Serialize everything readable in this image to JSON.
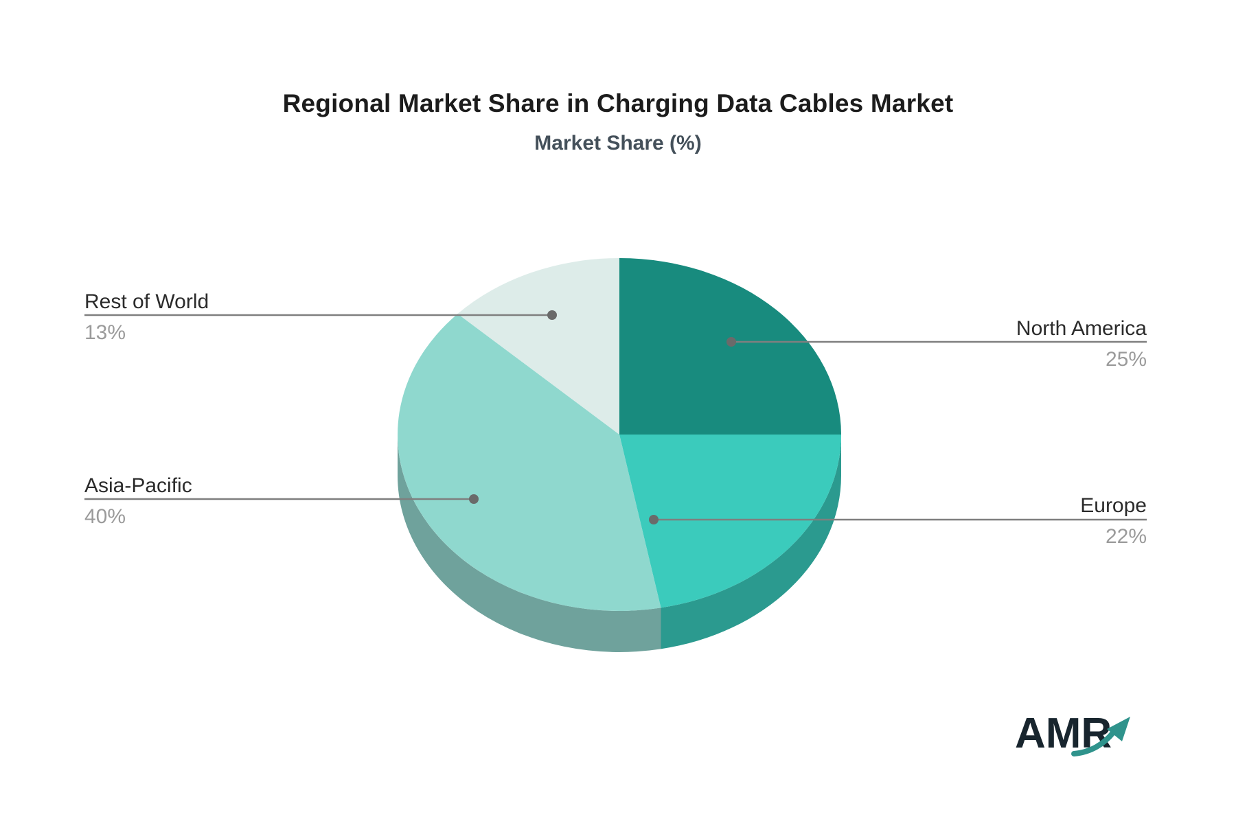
{
  "chart_data": {
    "type": "pie",
    "style": "3d-pie",
    "title": "Regional Market Share in Charging Data Cables Market",
    "subtitle": "Market Share (%)",
    "unit": "%",
    "direction": "clockwise",
    "start_angle_deg": 0,
    "categories": [
      "North America",
      "Europe",
      "Asia-Pacific",
      "Rest of World"
    ],
    "values": [
      25,
      22,
      40,
      13
    ],
    "value_labels": [
      "25%",
      "22%",
      "40%",
      "13%"
    ],
    "colors": [
      "#188B7E",
      "#3BCBBC",
      "#8FD8CE",
      "#DDECE9"
    ],
    "depth_colors": [
      "#16796F",
      "#2B9A8F",
      "#6FA29C",
      "#C5DCD8"
    ],
    "title_color": "#1C1C1C",
    "subtitle_color": "#44505A",
    "label_color": "#2B2B2B",
    "value_label_color": "#9B9B9B",
    "leader_line_color": "#7F7F7F",
    "leader_dot_color": "#6A6A6A",
    "background_color": "#FFFFFF",
    "legend_position": "none",
    "grid": false
  },
  "logo": {
    "text": "AMR",
    "text_color": "#18252E",
    "arrow_color": "#2F938C"
  }
}
